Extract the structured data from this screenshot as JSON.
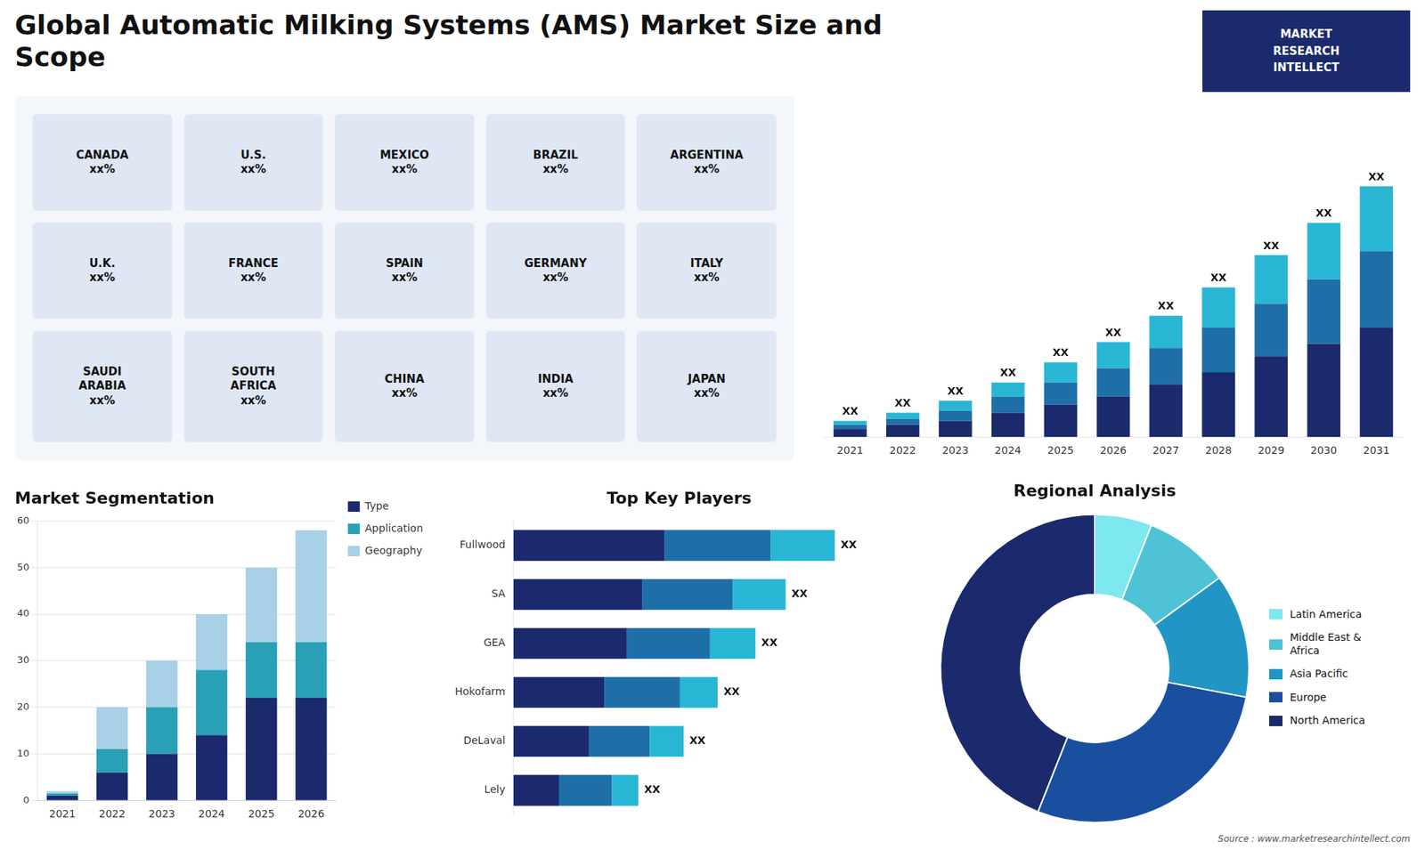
{
  "title": "Global Automatic Milking Systems (AMS) Market Size and\nScope",
  "annotations": [
    "MARKET\nRESEARCH\nINTELLECT",
    "Source : www.marketresearchintellect.com"
  ],
  "chart_data": [
    {
      "type": "map",
      "annotations": [
        "CANADA\nxx%",
        "U.S.\nxx%",
        "MEXICO\nxx%",
        "BRAZIL\nxx%",
        "ARGENTINA\nxx%",
        "U.K.\nxx%",
        "FRANCE\nxx%",
        "SPAIN\nxx%",
        "GERMANY\nxx%",
        "ITALY\nxx%",
        "SAUDI\nARABIA\nxx%",
        "SOUTH\nAFRICA\nxx%",
        "CHINA\nxx%",
        "INDIA\nxx%",
        "JAPAN\nxx%"
      ]
    },
    {
      "type": "bar",
      "stacked": true,
      "categories": [
        "2021",
        "2022",
        "2023",
        "2024",
        "2025",
        "2026",
        "2027",
        "2028",
        "2029",
        "2030",
        "2031"
      ],
      "series": [
        {
          "color": "#1a2a6c",
          "values": [
            2,
            3,
            4,
            6,
            8,
            10,
            13,
            16,
            20,
            23,
            27
          ]
        },
        {
          "color": "#1e6fa8",
          "values": [
            1,
            1.5,
            2.5,
            4,
            5.5,
            7,
            9,
            11,
            13,
            16,
            19
          ]
        },
        {
          "color": "#29b6d4",
          "values": [
            1,
            1.5,
            2.5,
            3.5,
            5,
            6.5,
            8,
            10,
            12,
            14,
            16
          ]
        }
      ],
      "ylim": [
        0,
        80.6
      ],
      "tick_labels": "x",
      "grid": false,
      "data_labels": true,
      "value_labels": [
        "XX",
        "XX",
        "XX",
        "XX",
        "XX",
        "XX",
        "XX",
        "XX",
        "XX",
        "XX",
        "XX"
      ]
    },
    {
      "type": "bar",
      "title": "Market Segmentation",
      "stacked": true,
      "categories": [
        "2021",
        "2022",
        "2023",
        "2024",
        "2025",
        "2026"
      ],
      "series": [
        {
          "name": "Type",
          "color": "#1a2a6c",
          "values": [
            1,
            6,
            10,
            14,
            22,
            22
          ]
        },
        {
          "name": "Application",
          "color": "#29a0b5",
          "values": [
            0.5,
            5,
            10,
            14,
            12,
            12
          ]
        },
        {
          "name": "Geography",
          "color": "#a8d0e6",
          "values": [
            0.5,
            9,
            10,
            12,
            16,
            24
          ]
        }
      ],
      "ylim": [
        0,
        60
      ],
      "yticks": [
        0,
        10,
        20,
        30,
        40,
        50,
        60
      ],
      "grid": true,
      "legend": "right"
    },
    {
      "type": "bar",
      "title": "Top Key Players",
      "orientation": "horizontal",
      "stacked": true,
      "categories": [
        "Fullwood",
        "SA",
        "GEA",
        "Hokofarm",
        "DeLaval",
        "Lely"
      ],
      "series": [
        {
          "color": "#1a2a6c",
          "values": [
            40,
            34,
            30,
            24,
            20,
            12
          ]
        },
        {
          "color": "#1e6fa8",
          "values": [
            28,
            24,
            22,
            20,
            16,
            14
          ]
        },
        {
          "color": "#29b6d4",
          "values": [
            17,
            14,
            12,
            10,
            9,
            7
          ]
        }
      ],
      "xlim": [
        0,
        103.7
      ],
      "tick_labels": "y",
      "grid": false,
      "data_labels": true,
      "value_labels": [
        "XX",
        "XX",
        "XX",
        "XX",
        "XX",
        "XX"
      ]
    },
    {
      "type": "doughnut",
      "title": "Regional Analysis",
      "categories": [
        "Latin America",
        "Middle East &\nAfrica",
        "Asia Pacific",
        "Europe",
        "North America"
      ],
      "values": [
        6,
        9,
        13,
        28,
        44
      ],
      "colors": [
        "#7de8f0",
        "#4fc3d6",
        "#2196c4",
        "#1a4fa0",
        "#1a2a6c"
      ],
      "legend": "right"
    }
  ]
}
